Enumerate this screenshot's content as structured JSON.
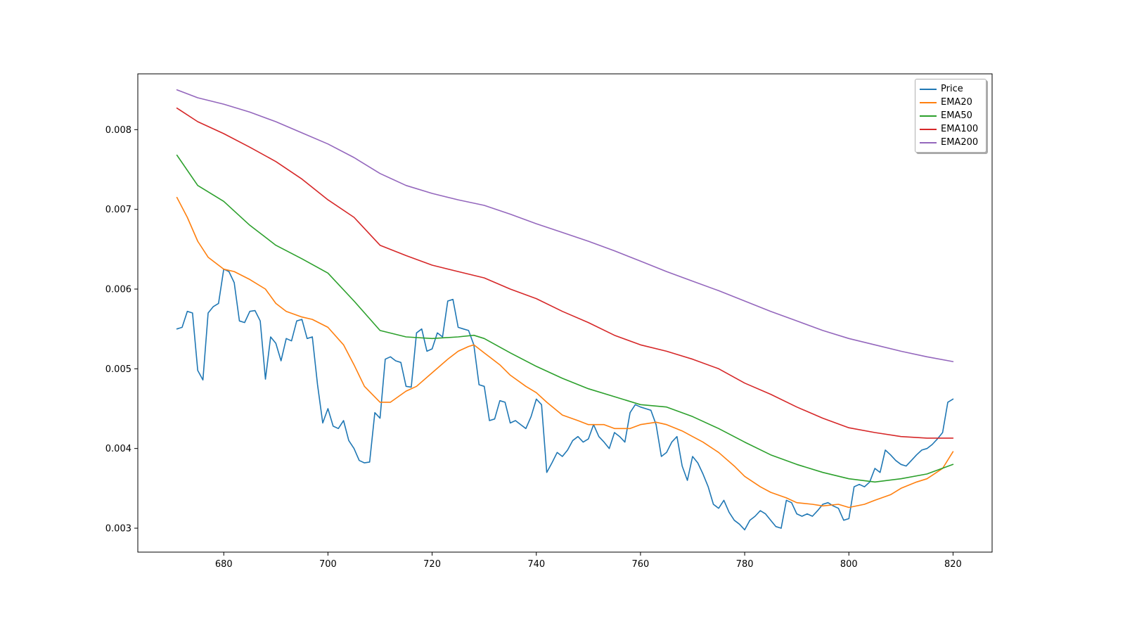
{
  "chart_data": {
    "type": "line",
    "title": "",
    "xlabel": "",
    "ylabel": "",
    "grid": false,
    "legend_position": "upper right",
    "xlim": [
      663.5,
      827.5
    ],
    "ylim": [
      0.0027,
      0.0087
    ],
    "x_ticks": [
      680,
      700,
      720,
      740,
      760,
      780,
      800,
      820
    ],
    "y_ticks": [
      0.003,
      0.004,
      0.005,
      0.006,
      0.007,
      0.008
    ],
    "y_tick_labels": [
      "0.003",
      "0.004",
      "0.005",
      "0.006",
      "0.007",
      "0.008"
    ],
    "series": [
      {
        "name": "Price",
        "color": "#1f77b4",
        "x_start": 671,
        "x_step": 1,
        "values": [
          0.0055,
          0.00552,
          0.00572,
          0.0057,
          0.00498,
          0.00486,
          0.0057,
          0.00578,
          0.00582,
          0.00625,
          0.00622,
          0.00608,
          0.0056,
          0.00558,
          0.00572,
          0.00573,
          0.0056,
          0.00487,
          0.0054,
          0.00532,
          0.0051,
          0.00538,
          0.00535,
          0.0056,
          0.00562,
          0.00538,
          0.0054,
          0.0048,
          0.00432,
          0.0045,
          0.00428,
          0.00425,
          0.00435,
          0.0041,
          0.004,
          0.00385,
          0.00382,
          0.00383,
          0.00445,
          0.00438,
          0.00512,
          0.00515,
          0.0051,
          0.00508,
          0.00478,
          0.00477,
          0.00545,
          0.0055,
          0.00522,
          0.00525,
          0.00545,
          0.0054,
          0.00585,
          0.00587,
          0.00552,
          0.0055,
          0.00548,
          0.0053,
          0.0048,
          0.00478,
          0.00435,
          0.00437,
          0.0046,
          0.00458,
          0.00432,
          0.00435,
          0.0043,
          0.00425,
          0.0044,
          0.00462,
          0.00455,
          0.0037,
          0.00382,
          0.00395,
          0.0039,
          0.00398,
          0.0041,
          0.00415,
          0.00408,
          0.00412,
          0.0043,
          0.00415,
          0.00408,
          0.004,
          0.0042,
          0.00415,
          0.00408,
          0.00445,
          0.00455,
          0.00452,
          0.0045,
          0.00448,
          0.0043,
          0.0039,
          0.00395,
          0.00408,
          0.00415,
          0.00378,
          0.0036,
          0.0039,
          0.00382,
          0.00368,
          0.00352,
          0.0033,
          0.00325,
          0.00335,
          0.0032,
          0.0031,
          0.00305,
          0.00298,
          0.0031,
          0.00315,
          0.00322,
          0.00318,
          0.0031,
          0.00302,
          0.003,
          0.00335,
          0.00332,
          0.00318,
          0.00315,
          0.00318,
          0.00315,
          0.00322,
          0.0033,
          0.00332,
          0.00328,
          0.00325,
          0.0031,
          0.00312,
          0.00352,
          0.00355,
          0.00352,
          0.00358,
          0.00375,
          0.0037,
          0.00398,
          0.00392,
          0.00385,
          0.0038,
          0.00378,
          0.00385,
          0.00392,
          0.00398,
          0.004,
          0.00405,
          0.00412,
          0.0042,
          0.00458,
          0.00462
        ]
      },
      {
        "name": "EMA20",
        "color": "#ff7f0e",
        "x": [
          671,
          673,
          675,
          677,
          680,
          682,
          685,
          688,
          690,
          692,
          695,
          697,
          700,
          703,
          705,
          707,
          710,
          712,
          715,
          717,
          720,
          723,
          725,
          727,
          728,
          730,
          733,
          735,
          738,
          740,
          742,
          745,
          748,
          750,
          753,
          755,
          758,
          760,
          763,
          765,
          768,
          770,
          772,
          775,
          778,
          780,
          783,
          785,
          788,
          790,
          793,
          795,
          798,
          800,
          803,
          805,
          808,
          810,
          813,
          815,
          818,
          820
        ],
        "y": [
          0.00715,
          0.0069,
          0.0066,
          0.0064,
          0.00625,
          0.00622,
          0.00612,
          0.006,
          0.00582,
          0.00572,
          0.00565,
          0.00562,
          0.00552,
          0.0053,
          0.00505,
          0.00478,
          0.00458,
          0.00458,
          0.00472,
          0.00478,
          0.00495,
          0.00512,
          0.00522,
          0.00528,
          0.0053,
          0.0052,
          0.00505,
          0.00492,
          0.00478,
          0.0047,
          0.00458,
          0.00442,
          0.00435,
          0.0043,
          0.0043,
          0.00425,
          0.00425,
          0.0043,
          0.00433,
          0.0043,
          0.00422,
          0.00415,
          0.00408,
          0.00395,
          0.00378,
          0.00365,
          0.00352,
          0.00345,
          0.00338,
          0.00332,
          0.0033,
          0.00328,
          0.0033,
          0.00326,
          0.0033,
          0.00335,
          0.00342,
          0.0035,
          0.00358,
          0.00362,
          0.00375,
          0.00396
        ]
      },
      {
        "name": "EMA50",
        "color": "#2ca02c",
        "x": [
          671,
          675,
          680,
          685,
          690,
          695,
          700,
          705,
          710,
          715,
          720,
          725,
          728,
          730,
          735,
          740,
          745,
          750,
          755,
          760,
          765,
          770,
          775,
          780,
          785,
          790,
          795,
          800,
          805,
          810,
          815,
          820
        ],
        "y": [
          0.00768,
          0.0073,
          0.0071,
          0.0068,
          0.00655,
          0.00638,
          0.0062,
          0.00585,
          0.00548,
          0.0054,
          0.00538,
          0.0054,
          0.00542,
          0.00538,
          0.0052,
          0.00503,
          0.00488,
          0.00475,
          0.00465,
          0.00455,
          0.00452,
          0.0044,
          0.00425,
          0.00408,
          0.00392,
          0.0038,
          0.0037,
          0.00362,
          0.00358,
          0.00362,
          0.00368,
          0.0038
        ]
      },
      {
        "name": "EMA100",
        "color": "#d62728",
        "x": [
          671,
          675,
          680,
          685,
          690,
          695,
          700,
          705,
          710,
          715,
          720,
          725,
          730,
          735,
          740,
          745,
          750,
          755,
          760,
          765,
          770,
          775,
          780,
          785,
          790,
          795,
          800,
          805,
          810,
          815,
          820
        ],
        "y": [
          0.00827,
          0.0081,
          0.00795,
          0.00778,
          0.0076,
          0.00738,
          0.00712,
          0.0069,
          0.00655,
          0.00642,
          0.0063,
          0.00622,
          0.00614,
          0.006,
          0.00588,
          0.00572,
          0.00558,
          0.00542,
          0.0053,
          0.00522,
          0.00512,
          0.005,
          0.00482,
          0.00468,
          0.00452,
          0.00438,
          0.00426,
          0.0042,
          0.00415,
          0.00413,
          0.00413
        ]
      },
      {
        "name": "EMA200",
        "color": "#9467bd",
        "x": [
          671,
          675,
          680,
          685,
          690,
          695,
          700,
          705,
          710,
          715,
          720,
          725,
          730,
          735,
          740,
          745,
          750,
          755,
          760,
          765,
          770,
          775,
          780,
          785,
          790,
          795,
          800,
          805,
          810,
          815,
          820
        ],
        "y": [
          0.0085,
          0.0084,
          0.00832,
          0.00822,
          0.0081,
          0.00796,
          0.00782,
          0.00765,
          0.00745,
          0.0073,
          0.0072,
          0.00712,
          0.00705,
          0.00694,
          0.00682,
          0.00671,
          0.0066,
          0.00648,
          0.00635,
          0.00622,
          0.0061,
          0.00598,
          0.00585,
          0.00572,
          0.0056,
          0.00548,
          0.00538,
          0.0053,
          0.00522,
          0.00515,
          0.00509
        ]
      }
    ]
  }
}
